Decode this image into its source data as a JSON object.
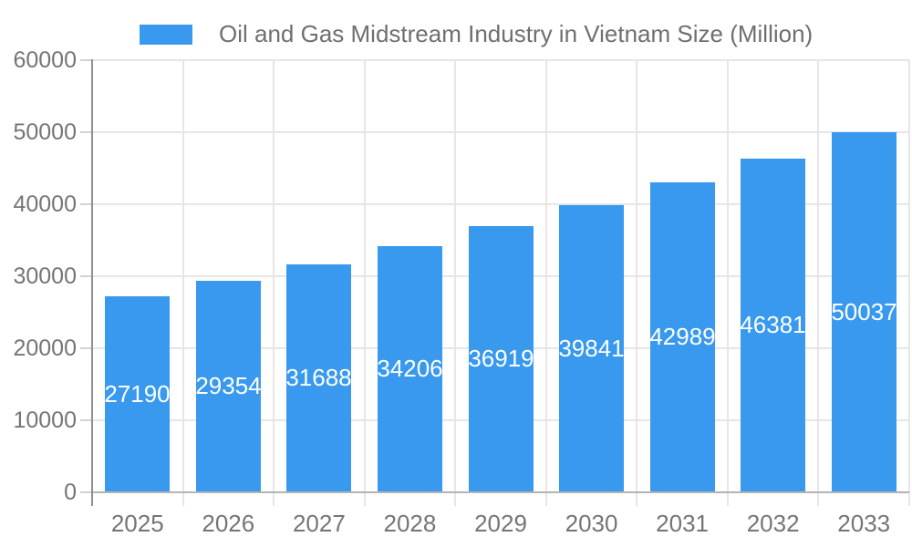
{
  "chart_data": {
    "type": "bar",
    "title": "Oil and Gas Midstream Industry in Vietnam Size (Million)",
    "categories": [
      "2025",
      "2026",
      "2027",
      "2028",
      "2029",
      "2030",
      "2031",
      "2032",
      "2033"
    ],
    "series": [
      {
        "name": "Oil and Gas Midstream Industry in Vietnam Size (Million)",
        "values": [
          27190,
          29354,
          31688,
          34206,
          36919,
          39841,
          42989,
          46381,
          50037
        ]
      }
    ],
    "bar_labels": [
      27190,
      29354,
      31688,
      34206,
      36919,
      39841,
      42989,
      46381,
      50037
    ],
    "xlabel": "",
    "ylabel": "",
    "ylim": [
      0,
      60000
    ],
    "yticks": [
      0,
      10000,
      20000,
      30000,
      40000,
      50000,
      60000
    ],
    "grid": true,
    "legend_position": "top",
    "bar_label_style": "white, centered inside bar",
    "colors": {
      "bar": "#3899EE",
      "bar_label": "#FFFFFF",
      "tick_text": "#757575",
      "legend_text": "#6F6F6F",
      "grid": "#E6E6E6",
      "axis_line": "#8F8F8F",
      "baseline": "#B3B3B3",
      "axis_tick": "#D2D2D2",
      "background": "#FFFFFF"
    }
  }
}
